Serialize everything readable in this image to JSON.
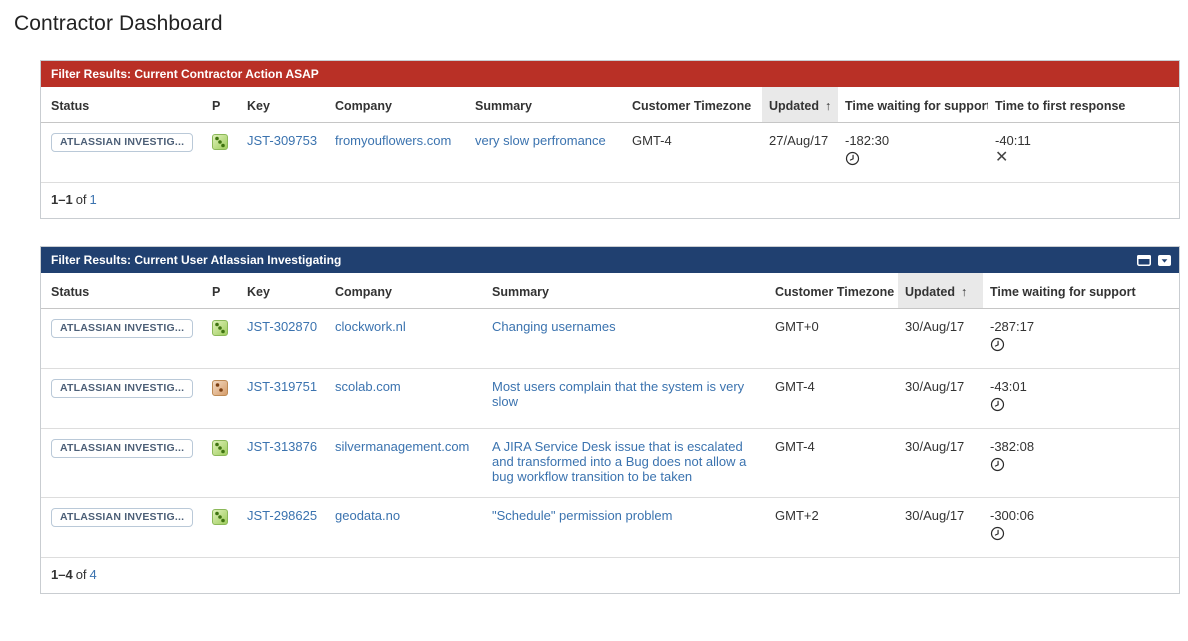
{
  "page": {
    "title": "Contractor Dashboard"
  },
  "colors": {
    "gadget_asap_header": "#b93026",
    "gadget_investigating_header": "#204070",
    "link_blue": "#3b73af",
    "sorted_column_bg": "#e9e9e9"
  },
  "icons": {
    "sort_ascending": "↑",
    "no_first_response_x": "✕"
  },
  "gadgets": [
    {
      "title": "Filter Results: Current Contractor Action ASAP",
      "header_color": "#b93026",
      "columns": [
        "Status",
        "P",
        "Key",
        "Company",
        "Summary",
        "Customer Timezone",
        "Updated",
        "Time waiting for support",
        "Time to first response"
      ],
      "sorted_column": "Updated",
      "rows": [
        {
          "status": "ATLASSIAN INVESTIG...",
          "priority": "green",
          "key": "JST-309753",
          "company": "fromyouflowers.com",
          "summary": "very slow perfromance",
          "timezone": "GMT-4",
          "updated": "27/Aug/17",
          "waiting": "-182:30",
          "first_response": "-40:11"
        }
      ],
      "pagination": {
        "range": "1–1",
        "of_label": "of",
        "total": "1"
      }
    },
    {
      "title": "Filter Results: Current User Atlassian Investigating",
      "header_color": "#204070",
      "columns": [
        "Status",
        "P",
        "Key",
        "Company",
        "Summary",
        "Customer Timezone",
        "Updated",
        "Time waiting for support"
      ],
      "sorted_column": "Updated",
      "rows": [
        {
          "status": "ATLASSIAN INVESTIG...",
          "priority": "green",
          "key": "JST-302870",
          "company": "clockwork.nl",
          "summary": "Changing usernames",
          "timezone": "GMT+0",
          "updated": "30/Aug/17",
          "waiting": "-287:17"
        },
        {
          "status": "ATLASSIAN INVESTIG...",
          "priority": "orange",
          "key": "JST-319751",
          "company": "scolab.com",
          "summary": "Most users complain that the system is very slow",
          "timezone": "GMT-4",
          "updated": "30/Aug/17",
          "waiting": "-43:01"
        },
        {
          "status": "ATLASSIAN INVESTIG...",
          "priority": "green",
          "key": "JST-313876",
          "company": "silvermanagement.com",
          "summary": "A JIRA Service Desk issue that is escalated and transformed into a Bug does not allow a bug workflow transition to be taken",
          "timezone": "GMT-4",
          "updated": "30/Aug/17",
          "waiting": "-382:08"
        },
        {
          "status": "ATLASSIAN INVESTIG...",
          "priority": "green",
          "key": "JST-298625",
          "company": "geodata.no",
          "summary": "\"Schedule\" permission problem",
          "timezone": "GMT+2",
          "updated": "30/Aug/17",
          "waiting": "-300:06"
        }
      ],
      "pagination": {
        "range": "1–4",
        "of_label": "of",
        "total": "4"
      }
    }
  ]
}
